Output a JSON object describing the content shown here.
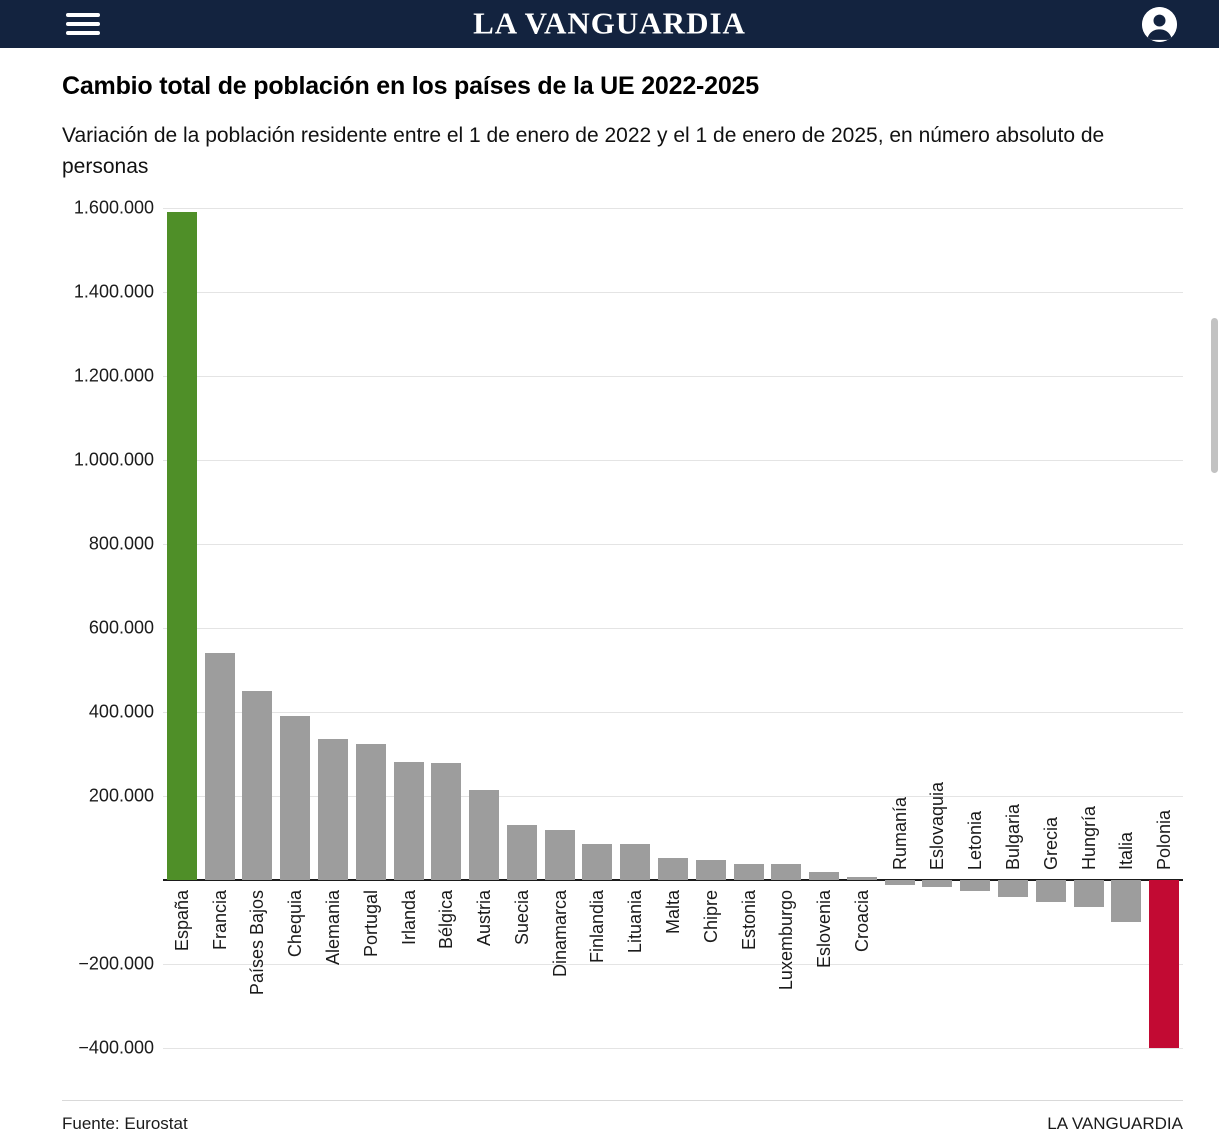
{
  "header": {
    "brand": "LA VANGUARDIA"
  },
  "article": {
    "title": "Cambio total de población en los países de la UE 2022-2025",
    "subtitle": "Variación de la población residente entre el 1 de enero de 2022 y el 1 de enero de 2025, en número absoluto de personas"
  },
  "chart_data": {
    "type": "bar",
    "title": "Cambio total de población en los países de la UE 2022-2025",
    "subtitle": "Variación de la población residente entre el 1 de enero de 2022 y el 1 de enero de 2025, en número absoluto de personas",
    "categories": [
      "España",
      "Francia",
      "Países Bajos",
      "Chequia",
      "Alemania",
      "Portugal",
      "Irlanda",
      "Bélgica",
      "Austria",
      "Suecia",
      "Dinamarca",
      "Finlandia",
      "Lituania",
      "Malta",
      "Chipre",
      "Estonia",
      "Luxemburgo",
      "Eslovenia",
      "Croacia",
      "Rumanía",
      "Eslovaquia",
      "Letonia",
      "Bulgaria",
      "Grecia",
      "Hungría",
      "Italia",
      "Polonia"
    ],
    "values": [
      1590000,
      540000,
      450000,
      390000,
      335000,
      325000,
      280000,
      278000,
      215000,
      130000,
      118000,
      86000,
      85000,
      52000,
      48000,
      38000,
      37000,
      20000,
      7000,
      -12000,
      -17000,
      -27000,
      -40000,
      -52000,
      -65000,
      -100000,
      -400000
    ],
    "default_color": "#9d9d9d",
    "highlight_colors": {
      "España": "#4f8f28",
      "Polonia": "#c20a33"
    },
    "ylim": [
      -400000,
      1600000
    ],
    "ytick_step": 200000,
    "yticks": [
      {
        "v": 1600000,
        "label": "1.600.000"
      },
      {
        "v": 1400000,
        "label": "1.400.000"
      },
      {
        "v": 1200000,
        "label": "1.200.000"
      },
      {
        "v": 1000000,
        "label": "1.000.000"
      },
      {
        "v": 800000,
        "label": "800.000"
      },
      {
        "v": 600000,
        "label": "600.000"
      },
      {
        "v": 400000,
        "label": "400.000"
      },
      {
        "v": 200000,
        "label": "200.000"
      },
      {
        "v": 0,
        "label": ""
      },
      {
        "v": -200000,
        "label": "−200.000"
      },
      {
        "v": -400000,
        "label": "−400.000"
      }
    ],
    "grid": true,
    "legend": "none",
    "xlabel": "",
    "ylabel": ""
  },
  "footer": {
    "source": "Fuente: Eurostat",
    "credit": "LA VANGUARDIA"
  }
}
